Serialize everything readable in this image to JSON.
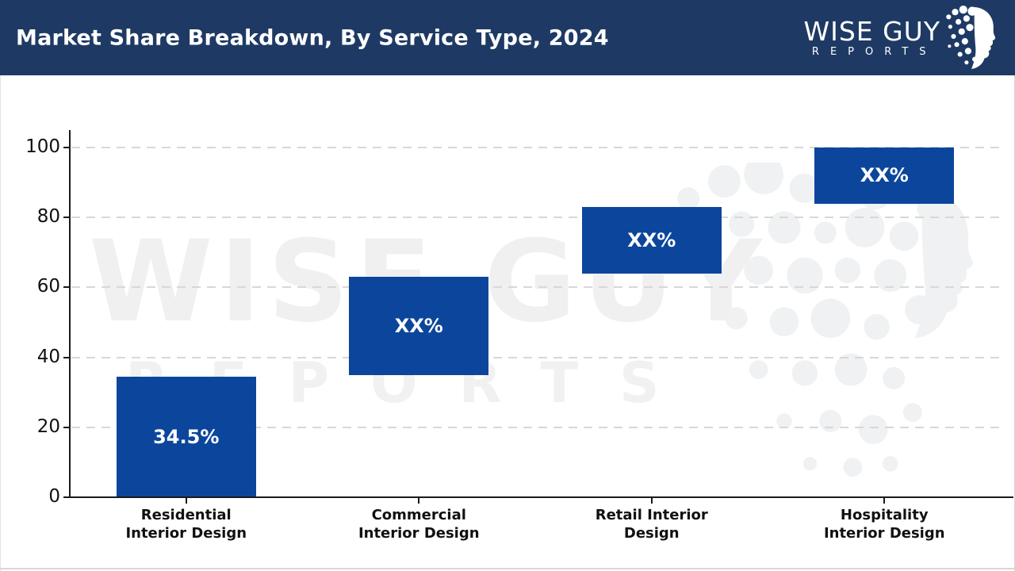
{
  "header": {
    "title": "Market Share Breakdown, By Service Type, 2024",
    "bg_color": "#1e3a64",
    "logo_line1": "WISE GUY",
    "logo_line2": "REPORTS"
  },
  "watermark": {
    "line1": "WISE GUY",
    "line2": "REPORTS"
  },
  "chart_data": {
    "type": "bar",
    "subtype": "floating-segment-waterfall",
    "title": "Market Share Breakdown, By Service Type, 2024",
    "categories": [
      "Residential Interior Design",
      "Commercial Interior Design",
      "Retail Interior Design",
      "Hospitality Interior Design"
    ],
    "category_label_lines": [
      [
        "Residential",
        "Interior Design"
      ],
      [
        "Commercial",
        "Interior Design"
      ],
      [
        "Retail Interior",
        "Design"
      ],
      [
        "Hospitality",
        "Interior Design"
      ]
    ],
    "segments": [
      {
        "category": "Residential Interior Design",
        "start": 0,
        "end": 34.5,
        "data_label": "34.5%"
      },
      {
        "category": "Commercial Interior Design",
        "start": 35,
        "end": 63,
        "data_label": "XX%"
      },
      {
        "category": "Retail Interior Design",
        "start": 64,
        "end": 83,
        "data_label": "XX%"
      },
      {
        "category": "Hospitality Interior Design",
        "start": 84,
        "end": 100,
        "data_label": "XX%"
      }
    ],
    "xlabel": "",
    "ylabel": "",
    "y_ticks": [
      0,
      20,
      40,
      60,
      80,
      100
    ],
    "ylim": [
      0,
      105
    ],
    "bar_color": "#0c469c",
    "data_label_color": "#ffffff",
    "grid": {
      "axis": "y",
      "style": "dashed",
      "color": "#d8d8d8"
    },
    "legend_position": "none"
  }
}
